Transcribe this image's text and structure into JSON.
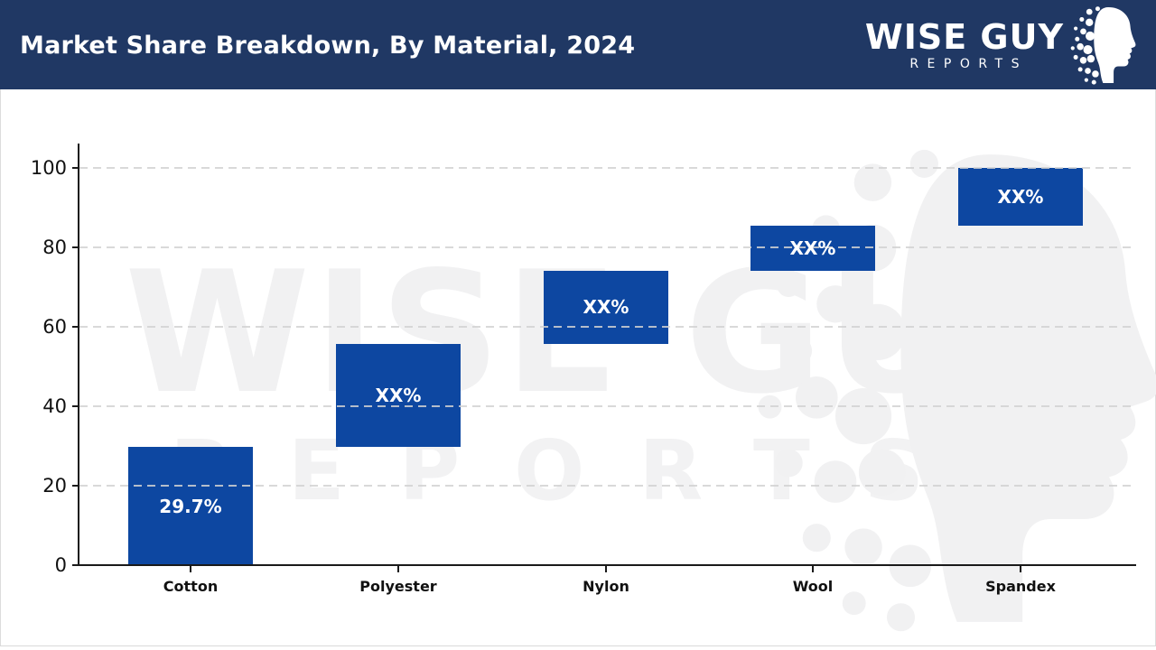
{
  "header": {
    "title": "Market Share Breakdown, By Material, 2024",
    "brand_line1": "WISE GUY",
    "brand_line2": "REPORTS"
  },
  "watermark": {
    "line1": "WISE GUY",
    "line2": "REPORTS"
  },
  "chart_data": {
    "type": "bar",
    "subtype": "waterfall",
    "title": "Market Share Breakdown, By Material, 2024",
    "categories": [
      "Cotton",
      "Polyester",
      "Nylon",
      "Wool",
      "Spandex"
    ],
    "segments": [
      {
        "category": "Cotton",
        "start": 0,
        "end": 29.7,
        "label": "29.7%"
      },
      {
        "category": "Polyester",
        "start": 29.7,
        "end": 55.7,
        "label": "XX%"
      },
      {
        "category": "Nylon",
        "start": 55.7,
        "end": 74.2,
        "label": "XX%"
      },
      {
        "category": "Wool",
        "start": 74.2,
        "end": 85.5,
        "label": "XX%"
      },
      {
        "category": "Spandex",
        "start": 85.5,
        "end": 100,
        "label": "XX%"
      }
    ],
    "yticks": [
      0,
      20,
      40,
      60,
      80,
      100
    ],
    "ylim": [
      0,
      106
    ],
    "xlabel": "",
    "ylabel": "",
    "grid": "horizontal-dashed",
    "legend": "none",
    "colors": {
      "bar": "#0d47a1",
      "bar_label": "#ffffff",
      "grid": "#d9d9d9",
      "axis": "#1a1a1a",
      "header_bg": "#203864",
      "header_text": "#ffffff",
      "watermark": "#f1f1f2"
    }
  }
}
